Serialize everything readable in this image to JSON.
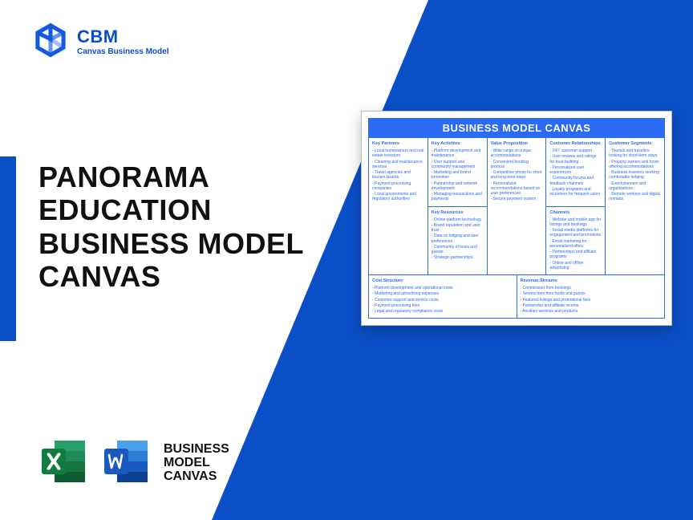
{
  "logo": {
    "title": "CBM",
    "subtitle": "Canvas Business Model"
  },
  "accent_color": "#0b4fc7",
  "main_title": [
    "PANORAMA",
    "EDUCATION",
    "BUSINESS MODEL",
    "CANVAS"
  ],
  "footer_label": [
    "BUSINESS",
    "MODEL",
    "CANVAS"
  ],
  "canvas": {
    "title": "BUSINESS MODEL CANVAS",
    "header_bg": "#2b6af2",
    "border_color": "#2b6af2",
    "text_color": "#2b6af2",
    "sections": {
      "key_partners": {
        "label": "Key Partners",
        "items": [
          "Local homeowners and real estate investors",
          "Cleaning and maintenance services",
          "Travel agencies and tourism boards",
          "Payment processing companies",
          "Local governments and regulatory authorities"
        ]
      },
      "key_activities": {
        "label": "Key Activities",
        "items": [
          "Platform development and maintenance",
          "User support and community management",
          "Marketing and brand promotion",
          "Partnership and network development",
          "Managing transactions and payments"
        ]
      },
      "key_resources": {
        "label": "Key Resources",
        "items": [
          "Online platform technology",
          "Brand reputation and user trust",
          "Data on lodging and user preferences",
          "Community of hosts and guests",
          "Strategic partnerships"
        ]
      },
      "value_proposition": {
        "label": "Value Proposition",
        "items": [
          "Wide range of unique accommodations",
          "Convenient booking process",
          "Competitive prices for short and long-term stays",
          "Personalized recommendations based on user preferences",
          "Secure payment system"
        ]
      },
      "customer_relationships": {
        "label": "Customer Relationships",
        "items": [
          "24/7 customer support",
          "User reviews and ratings for trust-building",
          "Personalized user experiences",
          "Community forums and feedback channels",
          "Loyalty programs and incentives for frequent users"
        ]
      },
      "channels": {
        "label": "Channels",
        "items": [
          "Website and mobile app for listings and bookings",
          "Social media platforms for engagement and promotions",
          "Email marketing for personalized offers",
          "Partnerships and affiliate programs",
          "Online and offline advertising"
        ]
      },
      "customer_segments": {
        "label": "Customer Segments",
        "items": [
          "Tourists and travelers looking for short-term stays",
          "Property owners and hosts offering accommodations",
          "Business travelers seeking comfortable lodging",
          "Event planners and organizations",
          "Remote workers and digital nomads"
        ]
      },
      "cost_structure": {
        "label": "Cost Structure",
        "items": [
          "Platform development and operational costs",
          "Marketing and advertising expenses",
          "Customer support and service costs",
          "Payment processing fees",
          "Legal and regulatory compliance costs"
        ]
      },
      "revenue_streams": {
        "label": "Revenue Streams",
        "items": [
          "Commission from bookings",
          "Service fees from hosts and guests",
          "Featured listings and promotional fees",
          "Partnership and affiliate income",
          "Ancillary services and products"
        ]
      }
    }
  }
}
